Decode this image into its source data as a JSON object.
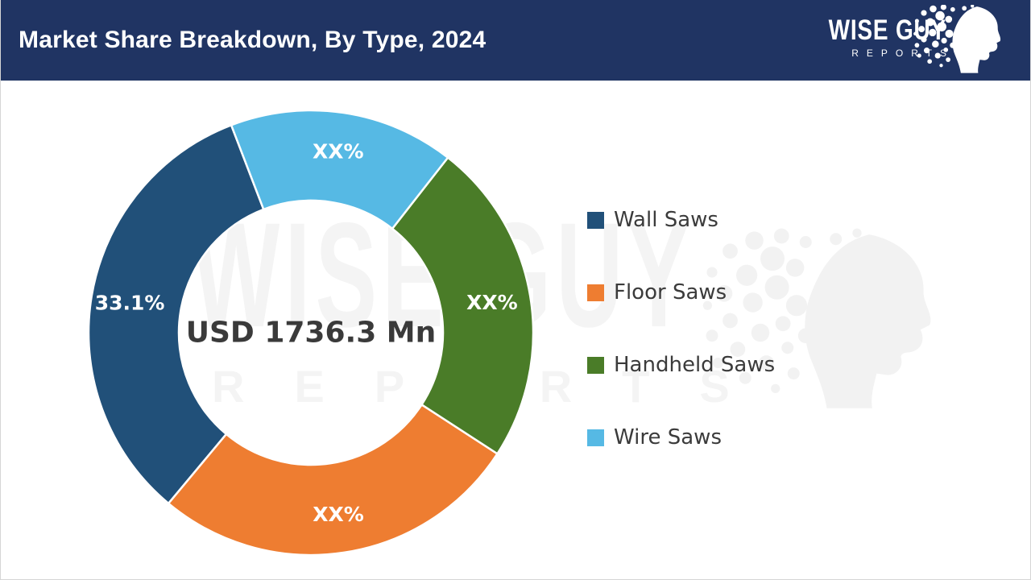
{
  "header": {
    "title": "Market Share Breakdown, By Type, 2024",
    "logo": {
      "line1": "WISE GUY",
      "line2": "REPORTS"
    }
  },
  "watermark": {
    "line1": "WISE GUY",
    "line2": "REPORTS"
  },
  "chart_data": {
    "type": "pie",
    "subtype": "donut",
    "title": "Market Share Breakdown, By Type, 2024",
    "center_label": "USD 1736.3 Mn",
    "start_angle_deg": -21,
    "legend_position": "right",
    "slices": [
      {
        "label": "Wire Saws",
        "value_pct": 16.4,
        "display_label": "XX%",
        "color": "#56b9e4"
      },
      {
        "label": "Handheld Saws",
        "value_pct": 23.6,
        "display_label": "XX%",
        "color": "#4a7c28"
      },
      {
        "label": "Floor Saws",
        "value_pct": 26.9,
        "display_label": "XX%",
        "color": "#ee7d31"
      },
      {
        "label": "Wall Saws",
        "value_pct": 33.1,
        "display_label": "33.1%",
        "color": "#215079"
      }
    ],
    "legend": [
      {
        "label": "Wall Saws",
        "color": "#215079"
      },
      {
        "label": "Floor Saws",
        "color": "#ee7d31"
      },
      {
        "label": "Handheld Saws",
        "color": "#4a7c28"
      },
      {
        "label": "Wire Saws",
        "color": "#56b9e4"
      }
    ]
  }
}
